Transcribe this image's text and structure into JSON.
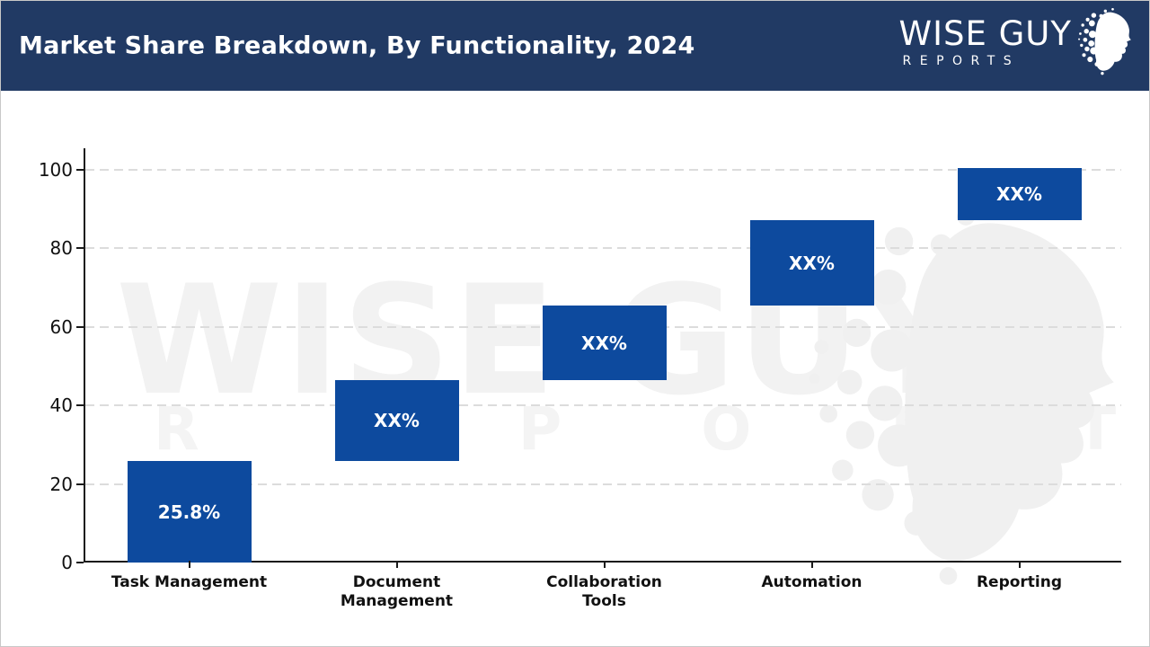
{
  "header": {
    "title": "Market Share Breakdown, By Functionality, 2024",
    "logo": {
      "line1": "WISE GUY",
      "line2": "REPORTS"
    }
  },
  "watermark": {
    "line1": "WISE GUY",
    "line2": "R E P O R T S"
  },
  "colors": {
    "header_bg": "#213a64",
    "bar": "#0d4a9e",
    "bar_label": "#ffffff",
    "grid": "#dcdcdc",
    "axis": "#1a1a1a",
    "watermark": "#f2f2f2"
  },
  "chart_data": {
    "type": "bar",
    "subtype": "waterfall",
    "title": "Market Share Breakdown, By Functionality, 2024",
    "xlabel": "",
    "ylabel": "",
    "categories": [
      "Task Management",
      "Document\nManagement",
      "Collaboration\nTools",
      "Automation",
      "Reporting"
    ],
    "segments": [
      {
        "category": "Task Management",
        "start": 0,
        "end": 25.8,
        "label": "25.8%"
      },
      {
        "category": "Document Management",
        "start": 25.8,
        "end": 46.4,
        "label": "XX%"
      },
      {
        "category": "Collaboration Tools",
        "start": 46.4,
        "end": 65.3,
        "label": "XX%"
      },
      {
        "category": "Automation",
        "start": 65.3,
        "end": 87.1,
        "label": "XX%"
      },
      {
        "category": "Reporting",
        "start": 87.1,
        "end": 100.4,
        "label": "XX%"
      }
    ],
    "yticks": [
      0,
      20,
      40,
      60,
      80,
      100
    ],
    "ylim": [
      0,
      105.4
    ],
    "grid": "horizontal-dashed",
    "legend": "none"
  }
}
